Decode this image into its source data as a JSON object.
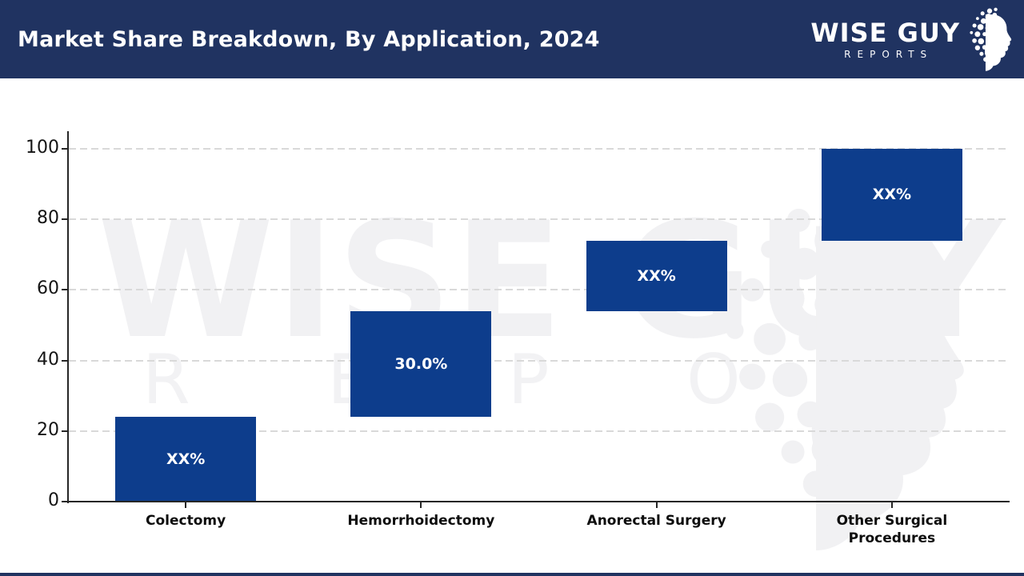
{
  "header": {
    "title": "Market Share Breakdown, By Application, 2024",
    "background_color": "#203361",
    "logo": {
      "wordmark": "WISE GUY",
      "subtext": "REPORTS",
      "face_icon": "dotted-head-profile"
    }
  },
  "watermark": {
    "wordmark": "WISE GUY",
    "subtext": "R E P O R T S",
    "face_icon": "dotted-head-profile",
    "color": "#f1f1f3"
  },
  "chart_data": {
    "type": "bar",
    "variant": "waterfall-floating-bars",
    "title": "Market Share Breakdown, By Application, 2024",
    "xlabel": "",
    "ylabel": "",
    "categories": [
      "Colectomy",
      "Hemorrhoidectomy",
      "Anorectal Surgery",
      "Other Surgical Procedures"
    ],
    "segments": [
      {
        "category": "Colectomy",
        "start": 0,
        "end": 24,
        "value_label": "XX%"
      },
      {
        "category": "Hemorrhoidectomy",
        "start": 24,
        "end": 54,
        "value_label": "30.0%"
      },
      {
        "category": "Anorectal Surgery",
        "start": 54,
        "end": 74,
        "value_label": "XX%"
      },
      {
        "category": "Other Surgical Procedures",
        "start": 74,
        "end": 100,
        "value_label": "XX%"
      }
    ],
    "yticks": [
      0,
      20,
      40,
      60,
      80,
      100
    ],
    "ylim": [
      0,
      105
    ],
    "grid": {
      "horizontal": true,
      "style": "dashed",
      "color": "#d9d9d9"
    },
    "legend": "none",
    "bar_color": "#0d3d8c",
    "bar_label_color": "#ffffff",
    "axis_color": "#262626",
    "tick_label_color": "#141414"
  },
  "footer": {
    "accent_bar_color": "#203361"
  }
}
